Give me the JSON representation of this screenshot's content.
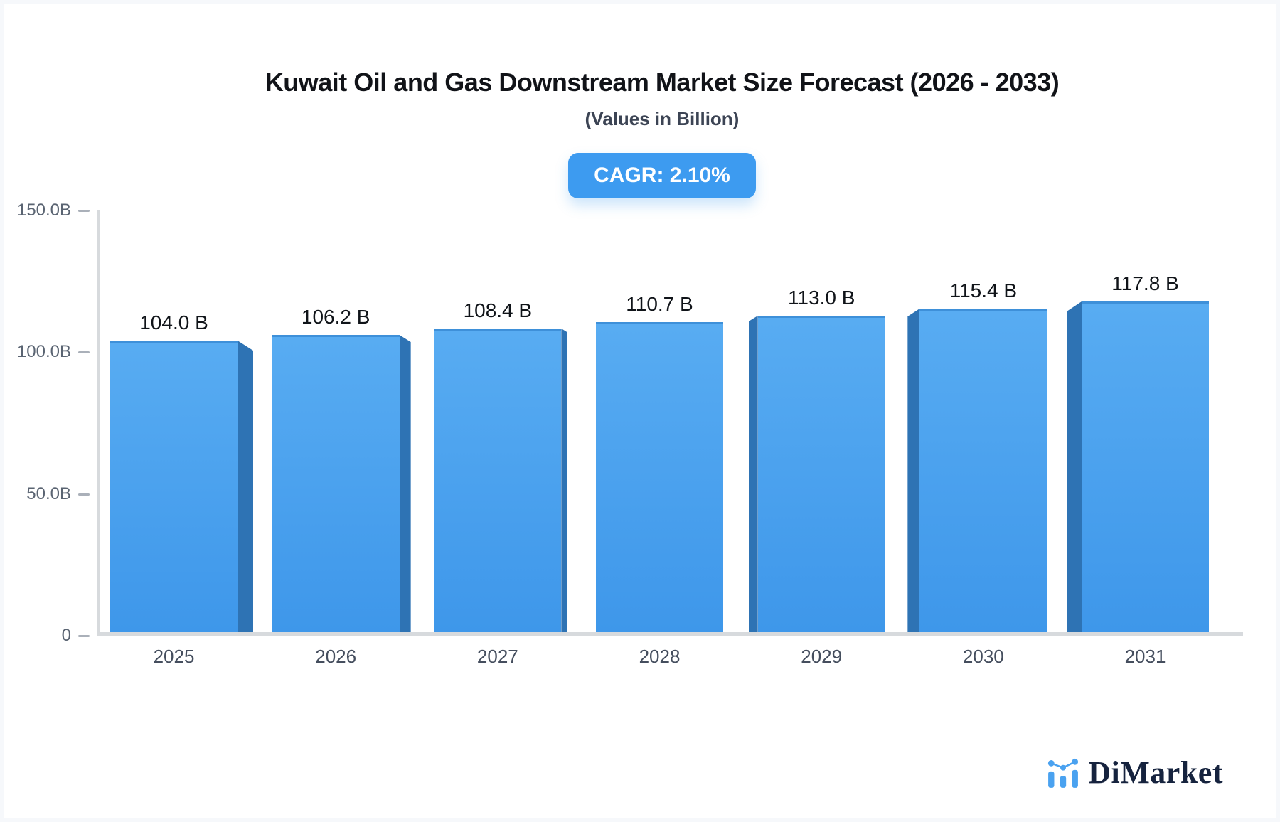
{
  "header": {
    "title": "Kuwait Oil and Gas Downstream Market Size Forecast (2026 - 2033)",
    "subtitle": "(Values in Billion)"
  },
  "badge": {
    "label": "CAGR: 2.10%"
  },
  "chart_data": {
    "type": "bar",
    "title": "Kuwait Oil and Gas Downstream Market Size Forecast (2026 - 2033)",
    "subtitle": "(Values in Billion)",
    "cagr": "2.10%",
    "cagr_label": "CAGR: 2.10%",
    "unit": "Billion",
    "categories": [
      "2025",
      "2026",
      "2027",
      "2028",
      "2029",
      "2030",
      "2031"
    ],
    "values": [
      104.0,
      106.2,
      108.4,
      110.7,
      113.0,
      115.4,
      117.8
    ],
    "display_values": [
      "104.0 B",
      "106.2 B",
      "108.4 B",
      "110.7 B",
      "113.0 B",
      "115.4 B",
      "117.8 B"
    ],
    "xlabel": "",
    "ylabel": "",
    "ylim": [
      0,
      150
    ],
    "yticks": [
      {
        "value": 150,
        "label": "150.0B"
      },
      {
        "value": 100,
        "label": "100.0B"
      },
      {
        "value": 50,
        "label": "50.0B"
      },
      {
        "value": 0,
        "label": "0"
      }
    ],
    "grid": false,
    "legend": null,
    "bar_style": "3d-gradient-blue"
  },
  "logo": {
    "text": "DiMarket",
    "icon": "bar-chart-with-trend-dots-icon"
  },
  "colors": {
    "page_bg": "#f6f8fb",
    "card_bg": "#ffffff",
    "title": "#111318",
    "subtitle": "#3c4454",
    "badge_bg": "#3d9bf0",
    "badge_text": "#ffffff",
    "bar_top": "#58acf2",
    "bar_bottom": "#3e97ea",
    "bar_border": "#3e90d9",
    "bar_side": "#2e73b4",
    "axis_line": "#d7dadd",
    "tick": "#aab0b9",
    "y_label": "#5a6472",
    "x_label": "#454e5e",
    "value_label": "#101419",
    "logo_navy": "#16233e",
    "logo_blue": "#4aa2f0"
  }
}
